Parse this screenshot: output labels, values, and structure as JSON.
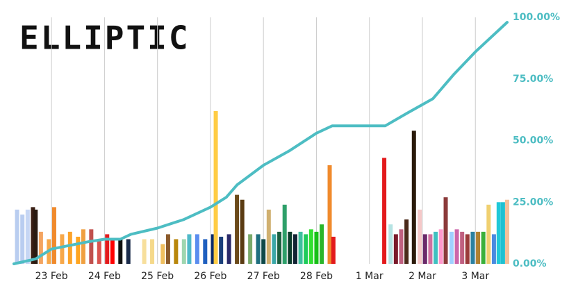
{
  "chart_data": {
    "type": "line",
    "title": "ELLIPTIC",
    "xlim": [
      -0.71,
      8.6
    ],
    "xticks": [
      {
        "value": 0,
        "label": "23 Feb"
      },
      {
        "value": 1,
        "label": "24 Feb"
      },
      {
        "value": 2,
        "label": "25 Feb"
      },
      {
        "value": 3,
        "label": "26 Feb"
      },
      {
        "value": 4,
        "label": "27 Feb"
      },
      {
        "value": 5,
        "label": "28 Feb"
      },
      {
        "value": 6,
        "label": "1 Mar"
      },
      {
        "value": 7,
        "label": "2 Mar"
      },
      {
        "value": 8,
        "label": "3 Mar"
      }
    ],
    "y2lim": [
      0,
      100
    ],
    "y2ticks": [
      {
        "value": 0,
        "label": "0.00%"
      },
      {
        "value": 25,
        "label": "25.00%"
      },
      {
        "value": 50,
        "label": "50.00%"
      },
      {
        "value": 75,
        "label": "75.00%"
      },
      {
        "value": 100,
        "label": "100.00%"
      }
    ],
    "grid": true,
    "series": [
      {
        "color": "#4dbdc3",
        "axis": "y2",
        "x": [
          -0.71,
          -0.3,
          0,
          0.7,
          1.0,
          1.3,
          1.5,
          2.0,
          2.5,
          3.0,
          3.3,
          3.5,
          4.0,
          4.5,
          5.0,
          5.3,
          6.3,
          6.7,
          7.2,
          7.6,
          8.0,
          8.6
        ],
        "values": [
          0,
          2,
          6,
          9,
          10,
          10,
          12,
          14.5,
          18,
          23,
          27,
          32,
          40,
          46,
          53,
          56,
          56,
          61,
          67,
          77,
          86,
          98
        ]
      }
    ],
    "bars": {
      "x": [
        -0.65,
        -0.55,
        -0.45,
        -0.35,
        -0.3,
        -0.2,
        -0.05,
        0.05,
        0.2,
        0.35,
        0.5,
        0.6,
        0.75,
        0.9,
        1.05,
        1.15,
        1.3,
        1.45,
        1.75,
        1.9,
        2.1,
        2.2,
        2.35,
        2.5,
        2.6,
        2.75,
        2.9,
        3.05,
        3.1,
        3.2,
        3.35,
        3.5,
        3.6,
        3.75,
        3.9,
        4.0,
        4.1,
        4.2,
        4.3,
        4.4,
        4.5,
        4.6,
        4.7,
        4.8,
        4.9,
        5.0,
        5.1,
        5.25,
        5.32,
        6.28,
        6.4,
        6.5,
        6.6,
        6.7,
        6.84,
        6.95,
        7.05,
        7.15,
        7.25,
        7.35,
        7.44,
        7.55,
        7.65,
        7.75,
        7.85,
        7.95,
        8.05,
        8.15,
        8.25,
        8.35,
        8.44,
        8.52,
        8.6
      ],
      "values": [
        22,
        20,
        22,
        23,
        22,
        13,
        10,
        23,
        12,
        13,
        11,
        14,
        14,
        10,
        12,
        10,
        10,
        10,
        10,
        10,
        8,
        12,
        10,
        10,
        12,
        12,
        10,
        12,
        62,
        11,
        12,
        28,
        26,
        12,
        12,
        10,
        22,
        12,
        13,
        24,
        13,
        12,
        13,
        12,
        14,
        13,
        16,
        40,
        11,
        43,
        16,
        12,
        14,
        18,
        54,
        22,
        12,
        12,
        13,
        14,
        27,
        13,
        14,
        13,
        12,
        13,
        13,
        13,
        24,
        12,
        25,
        25,
        26
      ],
      "colors": [
        "#b9cdf0",
        "#b9cdf0",
        "#c6d6f4",
        "#3a1f14",
        "#2a1a10",
        "#f4a460",
        "#f7a84a",
        "#f08a2c",
        "#f7a84a",
        "#fca32a",
        "#ffa520",
        "#f0a040",
        "#c0504d",
        "#d9534f",
        "#e31a1c",
        "#ff0000",
        "#111111",
        "#1a2a4a",
        "#f7df9c",
        "#f5d98a",
        "#f0c060",
        "#8b5a2b",
        "#b8860b",
        "#9fd6b0",
        "#4fb9c8",
        "#5b8def",
        "#1f5fbf",
        "#0a2a6a",
        "#ffcc44",
        "#1a3f7a",
        "#2a2a6a",
        "#6b4a1a",
        "#5a3b12",
        "#7aaa6a",
        "#1f6f7f",
        "#0f4a4a",
        "#d0b070",
        "#3aa8a8",
        "#1a5f3f",
        "#2ea06a",
        "#0a3a2a",
        "#112233",
        "#3fbf9f",
        "#1ecb5a",
        "#32e030",
        "#18c018",
        "#2ab52a",
        "#f08a2c",
        "#e31a1c",
        "#e31a1c",
        "#b6e3e3",
        "#7a1a2a",
        "#c06080",
        "#4a2a1a",
        "#2a1a0a",
        "#f5c8c8",
        "#6a2a6a",
        "#d070a0",
        "#40c0c0",
        "#ff99cc",
        "#8b3a3a",
        "#a0d0ff",
        "#cc66aa",
        "#c06080",
        "#9a3a3a",
        "#2a80a0",
        "#b08030",
        "#3ab03a",
        "#f0d070",
        "#4a8ae0",
        "#20c8d8",
        "#20c0d0",
        "#f5c09a"
      ]
    }
  }
}
